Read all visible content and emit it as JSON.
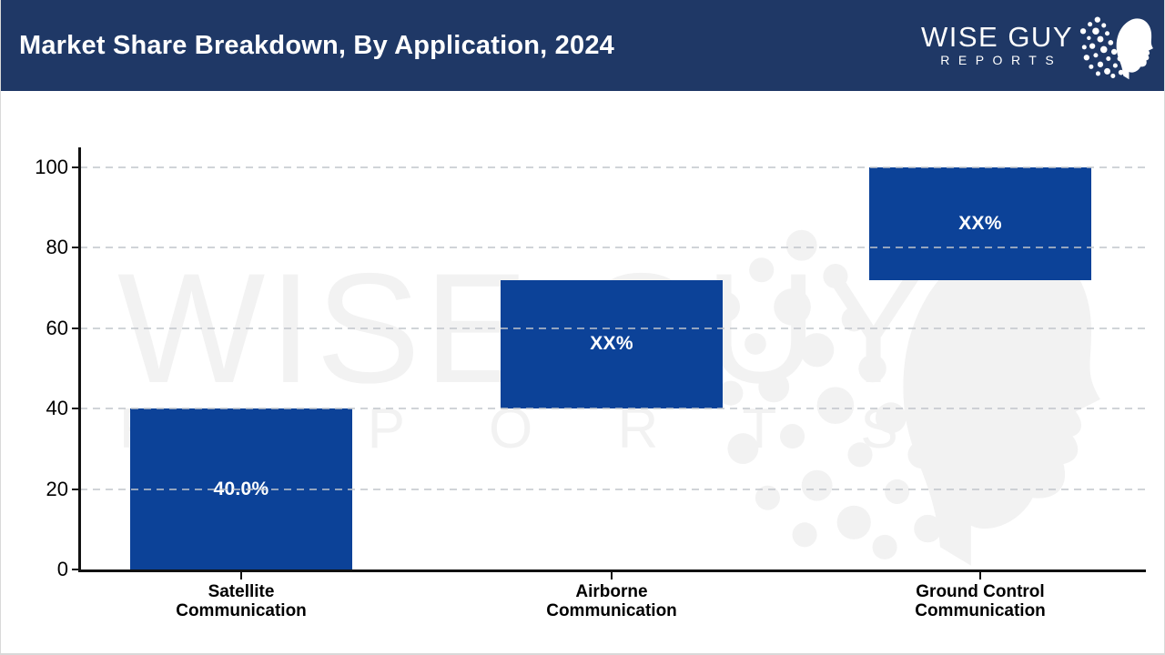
{
  "header": {
    "title": "Market Share Breakdown, By Application, 2024",
    "bg_color": "#1f3866",
    "logo": {
      "line1": "WISE GUY",
      "line2": "REPORTS"
    }
  },
  "watermark": {
    "line1": "WISE GUY",
    "line2": "R E P O R T S"
  },
  "colors": {
    "header_bg": "#1f3866",
    "bar_blue": "#0c4298",
    "watermark_gray": "#f2f2f2",
    "gridline_gray": "#e2e4e7",
    "axis_black": "#111111"
  },
  "chart_data": {
    "type": "bar",
    "subtype": "floating-segment-bar",
    "title": "Market Share Breakdown, By Application, 2024",
    "categories": [
      [
        "Satellite",
        "Communication"
      ],
      [
        "Airborne",
        "Communication"
      ],
      [
        "Ground Control",
        "Communication"
      ]
    ],
    "bars": [
      {
        "category": "Satellite Communication",
        "label": "40.0%",
        "start": 0,
        "end": 40,
        "value": 40.0
      },
      {
        "category": "Airborne Communication",
        "label": "XX%",
        "start": 40,
        "end": 72,
        "value": 32
      },
      {
        "category": "Ground Control Communication",
        "label": "XX%",
        "start": 72,
        "end": 100,
        "value": 28
      }
    ],
    "y_ticks": [
      0,
      20,
      40,
      60,
      80,
      100
    ],
    "ylim": [
      0,
      105
    ],
    "xlabel": "",
    "ylabel": "",
    "legend": null,
    "grid": "dashed-horizontal",
    "bar_color": "#0c4298"
  }
}
